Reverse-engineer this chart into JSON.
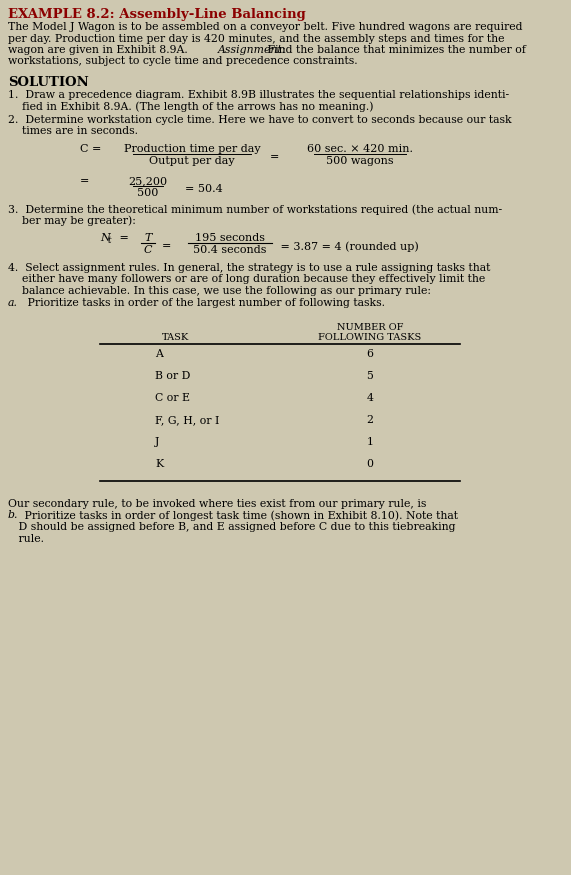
{
  "title": "EXAMPLE 8.2: Assembly-Line Balancing",
  "bg_color": "#cec8b0",
  "title_color": "#8B0000",
  "intro_line1": "The Model J Wagon is to be assembled on a conveyor belt. Five hundred wagons are required",
  "intro_line2": "per day. Production time per day is 420 minutes, and the assembly steps and times for the",
  "intro_line3a": "wagon are given in Exhibit 8.9A. ",
  "intro_line3b": "Assignment:",
  "intro_line3c": " Find the balance that minimizes the number of",
  "intro_line4": "workstations, subject to cycle time and precedence constraints.",
  "solution_label": "SOLUTION",
  "step1_line1": "1.  Draw a precedence diagram. Exhibit 8.9B illustrates the sequential relationships identi-",
  "step1_line2": "    fied in Exhibit 8.9A. (The length of the arrows has no meaning.)",
  "step2_line1": "2.  Determine workstation cycle time. Here we have to convert to seconds because our task",
  "step2_line2": "    times are in seconds.",
  "f1_c": "C",
  "f1_eq1": " = ",
  "f1_num1": "Production time per day",
  "f1_den1": "Output per day",
  "f1_eq2": " = ",
  "f1_num2": "60 sec. × 420 min.",
  "f1_den2": "500 wagons",
  "f1_eq3": " = ",
  "f1_num3": "25,200",
  "f1_den3": "500",
  "f1_result": " = 50.4",
  "step3_line1": "3.  Determine the theoretical minimum number of workstations required (the actual num-",
  "step3_line2": "    ber may be greater):",
  "f2_N": "N",
  "f2_sub": "t",
  "f2_eq1": " = ",
  "f2_T": "T",
  "f2_C": "C",
  "f2_eq2": " = ",
  "f2_num": "195 seconds",
  "f2_den": "50.4 seconds",
  "f2_result": " = 3.87 = 4 (rounded up)",
  "step4_line1": "4.  Select assignment rules. In general, the strategy is to use a rule assigning tasks that",
  "step4_line2": "    either have many followers or are of long duration because they effectively limit the",
  "step4_line3": "    balance achievable. In this case, we use the following as our primary rule:",
  "step4_line4a": " a. ",
  "step4_line4b": " Prioritize tasks in order of the largest number of following tasks.",
  "tbl_h1": "TASK",
  "tbl_h2a": "NUMBER OF",
  "tbl_h2b": "FOLLOWING TASKS",
  "tbl_rows": [
    [
      "A",
      "6"
    ],
    [
      "B or D",
      "5"
    ],
    [
      "C or E",
      "4"
    ],
    [
      "F, G, H, or I",
      "2"
    ],
    [
      "J",
      "1"
    ],
    [
      "K",
      "0"
    ]
  ],
  "footer1": "Our secondary rule, to be invoked where ties exist from our primary rule, is",
  "footer2a": "b.",
  "footer2b": " Prioritize tasks in order of longest task time (shown in Exhibit 8.10). Note that",
  "footer3": "   D should be assigned before B, and E assigned before C due to this tiebreaking",
  "footer4": "   rule."
}
